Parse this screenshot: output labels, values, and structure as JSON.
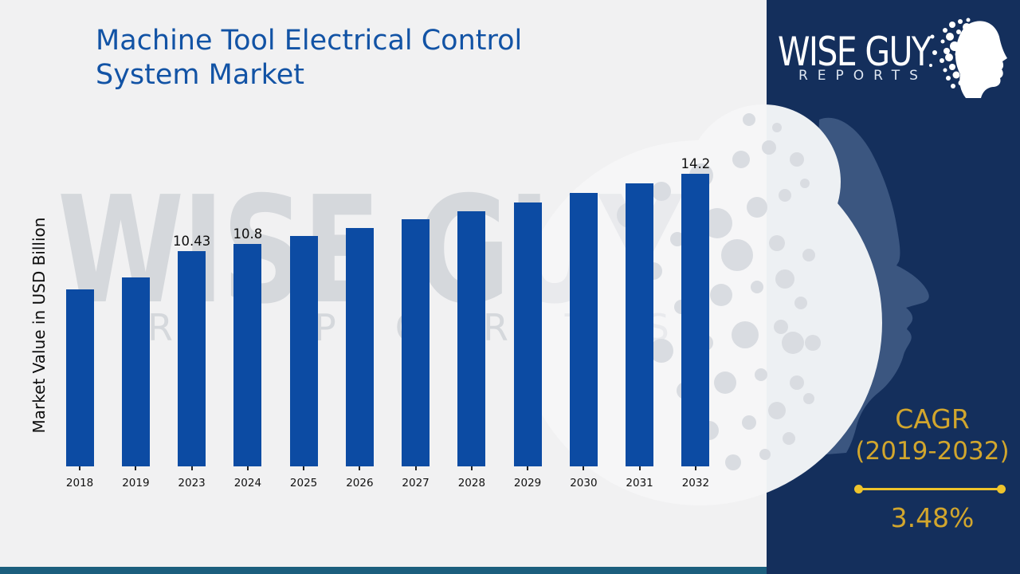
{
  "title": {
    "line1": "Machine Tool Electrical Control",
    "line2": "System Market"
  },
  "y_axis_label": "Market Value in USD Billion",
  "watermark": {
    "line1": "WISE GUY",
    "line2": "REPORTS"
  },
  "logo": {
    "line1": "WISE GUY",
    "line2": "REPORTS"
  },
  "cagr": {
    "label_line1": "CAGR",
    "label_line2": "(2019-2032)",
    "value": "3.48%"
  },
  "colors": {
    "background": "#f1f1f2",
    "bar": "#0c4ba3",
    "title_blue": "#1253a5",
    "panel_navy": "#142f5c",
    "face_blue": "#3b5680",
    "gold": "#d2a62d",
    "gold_bright": "#eec42c",
    "teal_strip": "#1c5f7e"
  },
  "chart_data": {
    "type": "bar",
    "title": "Machine Tool Electrical Control System Market",
    "xlabel": "",
    "ylabel": "Market Value in USD Billion",
    "categories": [
      "2018",
      "2019",
      "2023",
      "2024",
      "2025",
      "2026",
      "2027",
      "2028",
      "2029",
      "2030",
      "2031",
      "2032"
    ],
    "values": [
      8.6,
      9.15,
      10.43,
      10.8,
      11.18,
      11.57,
      11.97,
      12.39,
      12.82,
      13.26,
      13.73,
      14.2
    ],
    "data_labels": [
      "",
      "",
      "10.43",
      "10.8",
      "",
      "",
      "",
      "",
      "",
      "",
      "",
      "14.2"
    ],
    "ylim": [
      0,
      16.9
    ],
    "grid": false,
    "legend": false,
    "bar_color": "#0c4ba3",
    "cagr_percent": 3.48,
    "cagr_period": "2019-2032"
  }
}
